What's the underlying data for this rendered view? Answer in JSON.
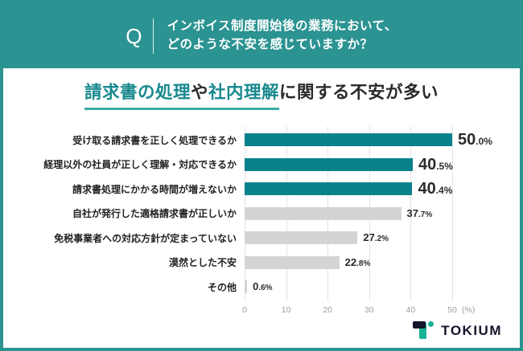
{
  "header": {
    "icon_label": "Q",
    "question_line1": "インボイス制度開始後の業務において、",
    "question_line2": "どのような不安を感じていますか？"
  },
  "title": {
    "highlight1": "請求書の処理",
    "connector": "や",
    "highlight2": "社内理解",
    "suffix": "に関する不安が多い"
  },
  "chart_data": {
    "type": "bar",
    "orientation": "horizontal",
    "title": "請求書の処理や社内理解に関する不安が多い",
    "categories": [
      "受け取る請求書を正しく処理できるか",
      "経理以外の社員が正しく理解・対応できるか",
      "請求書処理にかかる時間が増えないか",
      "自社が発行した適格請求書が正しいか",
      "免税事業者への対応方針が定まっていない",
      "漠然とした不安",
      "その他"
    ],
    "values": [
      50.0,
      40.5,
      40.4,
      37.7,
      27.2,
      22.8,
      0.6
    ],
    "value_labels": [
      "50.0%",
      "40.5%",
      "40.4%",
      "37.7%",
      "27.2%",
      "22.8%",
      "0.6%"
    ],
    "bars": [
      {
        "label": "受け取る請求書を正しく処理できるか",
        "value": 50.0,
        "value_int": "50",
        "value_frac": ".0%",
        "emphasis": true
      },
      {
        "label": "経理以外の社員が正しく理解・対応できるか",
        "value": 40.5,
        "value_int": "40",
        "value_frac": ".5%",
        "emphasis": true
      },
      {
        "label": "請求書処理にかかる時間が増えないか",
        "value": 40.4,
        "value_int": "40",
        "value_frac": ".4%",
        "emphasis": true
      },
      {
        "label": "自社が発行した適格請求書が正しいか",
        "value": 37.7,
        "value_int": "37",
        "value_frac": ".7%",
        "emphasis": false
      },
      {
        "label": "免税事業者への対応方針が定まっていない",
        "value": 27.2,
        "value_int": "27",
        "value_frac": ".2%",
        "emphasis": false
      },
      {
        "label": "漠然とした不安",
        "value": 22.8,
        "value_int": "22",
        "value_frac": ".8%",
        "emphasis": false
      },
      {
        "label": "その他",
        "value": 0.6,
        "value_int": "0",
        "value_frac": ".6%",
        "emphasis": false
      }
    ],
    "xlabel": "",
    "ylabel": "",
    "xlim": [
      0,
      50
    ],
    "x_ticks": [
      "0",
      "10",
      "20",
      "30",
      "40",
      "50"
    ],
    "x_axis_unit": "(%)",
    "grid": true,
    "legend": false,
    "bar_color_emphasis": "#0A828B",
    "bar_color_default": "#D4D4D4"
  },
  "footer": {
    "brand": "TOKIUM"
  },
  "colors": {
    "frame_teal": "#2B9391",
    "title_teal": "#18898E",
    "underline_teal": "#3BABA5",
    "text_dark": "#2B2B2B",
    "axis_gray": "#9E9E9E",
    "grid_gray": "#E4E4E4",
    "logo_navy": "#14142B",
    "logo_green": "#17B394"
  }
}
